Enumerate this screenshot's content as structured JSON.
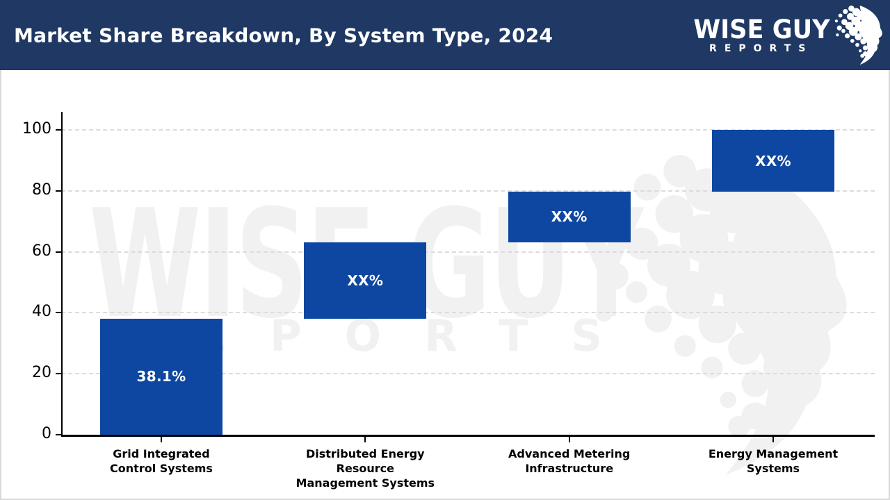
{
  "header": {
    "bg_color": "#1f3864",
    "title": "Market Share Breakdown, By System Type, 2024",
    "logo": {
      "line1": "WISE GUY",
      "line2": "REPORTS"
    }
  },
  "watermark": {
    "line1": "WISE GUY",
    "line2": "REPORTS",
    "color": "#f1f1f1"
  },
  "chart_data": {
    "type": "waterfall",
    "title": "Market Share Breakdown, By System Type, 2024",
    "xlabel": "",
    "ylabel": "",
    "categories": [
      "Grid Integrated\nControl Systems",
      "Distributed Energy\nResource\nManagement Systems",
      "Advanced Metering\nInfrastructure",
      "Energy Management\nSystems"
    ],
    "segments": [
      {
        "start": 0,
        "end": 38.1,
        "label": "38.1%"
      },
      {
        "start": 38.1,
        "end": 63.2,
        "label": "XX%"
      },
      {
        "start": 63.2,
        "end": 79.7,
        "label": "XX%"
      },
      {
        "start": 79.7,
        "end": 100,
        "label": "XX%"
      }
    ],
    "ylim": [
      0,
      100
    ],
    "yticks": [
      0,
      20,
      40,
      60,
      80,
      100
    ],
    "grid": "horizontal-dashed",
    "legend": "none",
    "bar_color": "#0d47a1",
    "bar_label_color": "#ffffff",
    "grid_color": "#dcdcdc",
    "axis_color": "#000000"
  }
}
